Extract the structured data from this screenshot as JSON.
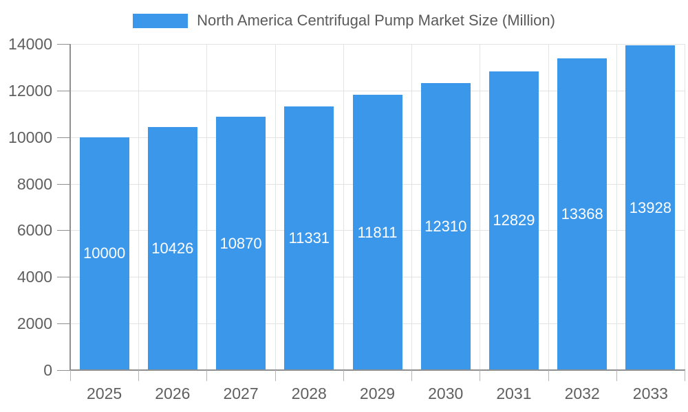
{
  "chart_data": {
    "type": "bar",
    "title": "North America Centrifugal Pump Market Size (Million)",
    "categories": [
      "2025",
      "2026",
      "2027",
      "2028",
      "2029",
      "2030",
      "2031",
      "2032",
      "2033"
    ],
    "series": [
      {
        "name": "North America Centrifugal Pump Market Size (Million)",
        "values": [
          10000,
          10426,
          10870,
          11331,
          11811,
          12310,
          12829,
          13368,
          13928
        ]
      }
    ],
    "xlabel": "",
    "ylabel": "",
    "ylim": [
      0,
      14000
    ],
    "y_ticks": [
      0,
      2000,
      4000,
      6000,
      8000,
      10000,
      12000,
      14000
    ],
    "value_labels": "inside-centered-white",
    "legend_position": "top-center",
    "grid": "horizontal-and-vertical",
    "colors": {
      "bar": "#3A97EA",
      "grid_line": "#E3E3E3",
      "axis_line": "#8F8F8F",
      "axis_tick": "#B5B5B5",
      "axis_text": "#5F5F5F",
      "value_label_text": "#FFFFFF",
      "legend_text": "#5A5A5A",
      "background": "#FFFFFF"
    }
  }
}
